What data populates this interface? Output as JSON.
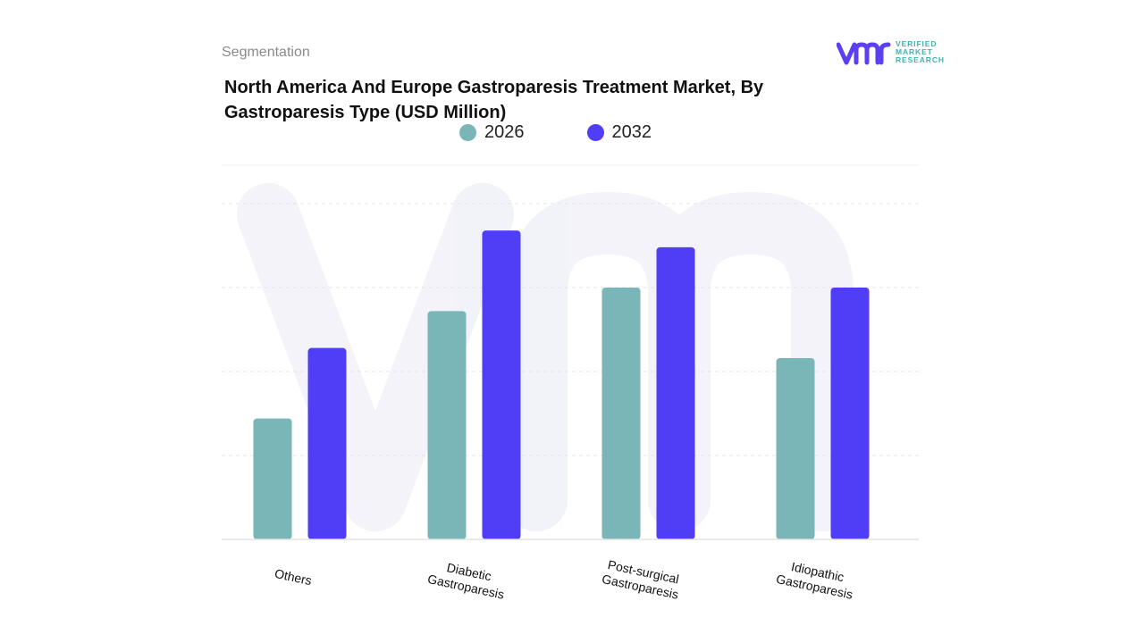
{
  "header": {
    "eyebrow": "Segmentation",
    "title": "North America And Europe Gastroparesis Treatment Market, By Gastroparesis Type (USD Million)"
  },
  "logo": {
    "mark": "VMR",
    "lines": [
      "VERIFIED",
      "MARKET",
      "RESEARCH"
    ],
    "colors": {
      "mark": "#5b3ff0",
      "text": "#3fb3b0"
    }
  },
  "chart_data": {
    "type": "bar",
    "title": "North America And Europe Gastroparesis Treatment Market, By Gastroparesis Type (USD Million)",
    "xlabel": "",
    "ylabel": "",
    "ylim": [
      0,
      100
    ],
    "grid": true,
    "legend_placement": "top-center",
    "categories": [
      "Others",
      "Diabetic Gastroparesis",
      "Post-surgical Gastroparesis",
      "Idiopathic Gastroparesis"
    ],
    "series": [
      {
        "name": "2026",
        "color": "#7ab5b8",
        "values": [
          36,
          68,
          75,
          54
        ]
      },
      {
        "name": "2032",
        "color": "#4f3ef5",
        "values": [
          57,
          92,
          87,
          75
        ]
      }
    ]
  }
}
